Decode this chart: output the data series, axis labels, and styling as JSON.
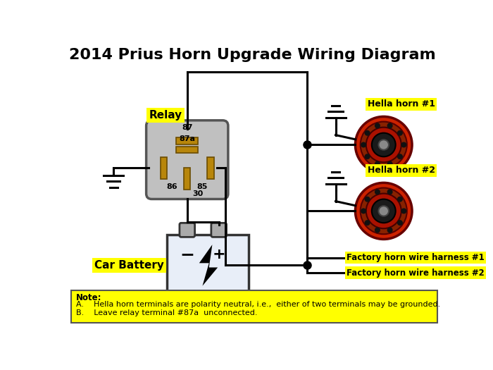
{
  "title": "2014 Prius Horn Upgrade Wiring Diagram",
  "title_fontsize": 16,
  "title_fontweight": "bold",
  "title_color": "#000000",
  "background_color": "#ffffff",
  "relay_label": "Relay",
  "relay_label_bg": "#ffff00",
  "relay_box_color": "#c0c0c0",
  "relay_box_edge": "#555555",
  "relay_pin_color": "#b8860b",
  "battery_label": "Car Battery",
  "battery_label_bg": "#ffff00",
  "battery_body_color": "#e8eef8",
  "battery_edge_color": "#333333",
  "battery_term_color": "#aaaaaa",
  "horn1_label": "Hella horn #1",
  "horn1_label_bg": "#ffff00",
  "horn2_label": "Hella horn #2",
  "horn2_label_bg": "#ffff00",
  "harness1_label": "Factory horn wire harness #1",
  "harness1_label_bg": "#ffff00",
  "harness2_label": "Factory horn wire harness #2",
  "harness2_label_bg": "#ffff00",
  "horn_outer_color": "#cc2200",
  "horn_mid_color": "#aa1100",
  "horn_ring_color": "#882200",
  "horn_inner_color": "#1a1a1a",
  "horn_center_color": "#888888",
  "wire_color": "#000000",
  "wire_lw": 2.2,
  "note_bg": "#ffff00",
  "note_border": "#555555",
  "note_title": "Note:",
  "note_line1": "A.    Hella horn terminals are polarity neutral, i.e.,  either of two terminals may be grounded.",
  "note_line2": "B.    Leave relay terminal #87a  unconnected."
}
